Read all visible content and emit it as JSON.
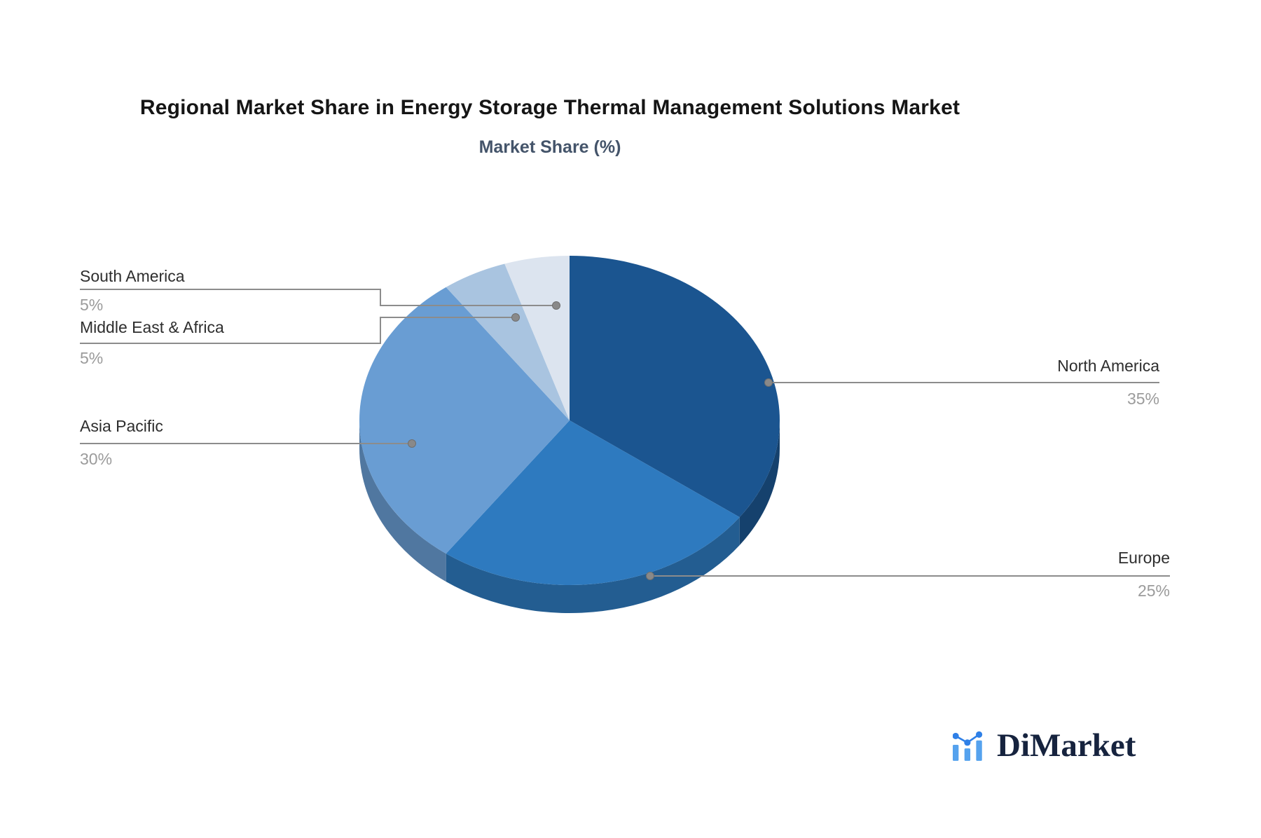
{
  "title": "Regional Market Share in Energy Storage Thermal Management Solutions Market",
  "subtitle": "Market Share (%)",
  "logo": {
    "text": "DiMarket"
  },
  "chart_data": {
    "type": "pie",
    "style": "3d",
    "title": "Regional Market Share in Energy Storage Thermal Management Solutions Market",
    "subtitle": "Market Share (%)",
    "unit": "%",
    "start_angle_deg": 0,
    "clockwise": true,
    "legend_position": "callout-labels",
    "slices": [
      {
        "label": "North America",
        "value": 35,
        "display": "35%",
        "color": "#1b5590"
      },
      {
        "label": "Europe",
        "value": 25,
        "display": "25%",
        "color": "#2e7abf"
      },
      {
        "label": "Asia Pacific",
        "value": 30,
        "display": "30%",
        "color": "#699dd3"
      },
      {
        "label": "Middle East & Africa",
        "value": 5,
        "display": "5%",
        "color": "#a9c4e0"
      },
      {
        "label": "South America",
        "value": 5,
        "display": "5%",
        "color": "#dce4ef"
      }
    ]
  }
}
